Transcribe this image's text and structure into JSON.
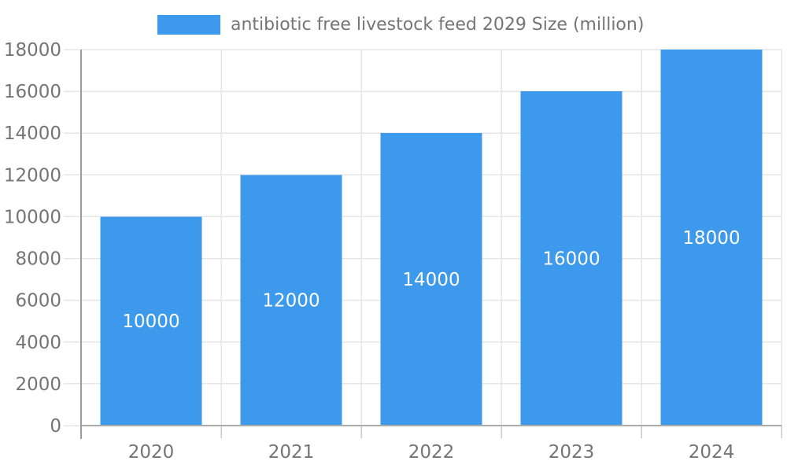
{
  "chart_data": {
    "type": "bar",
    "categories": [
      "2020",
      "2021",
      "2022",
      "2023",
      "2024"
    ],
    "values": [
      10000,
      12000,
      14000,
      16000,
      18000
    ],
    "series_name": "antibiotic free livestock feed 2029 Size (million)",
    "title": "",
    "xlabel": "",
    "ylabel": "",
    "ylim": [
      0,
      18000
    ],
    "ytick_step": 2000,
    "ytick_labels": [
      "0",
      "2000",
      "4000",
      "6000",
      "8000",
      "10000",
      "12000",
      "14000",
      "16000",
      "18000"
    ],
    "bar_value_labels": [
      "10000",
      "12000",
      "14000",
      "16000",
      "18000"
    ],
    "grid": true,
    "legend_position": "top",
    "colors": {
      "bar": "#3C99EC",
      "bar_label": "#FFFFFF",
      "axis_text": "#757575",
      "legend_text": "#757575",
      "grid_line": "#E6E6E6",
      "axis_line": "#9C9C9C",
      "baseline": "#ABABAB",
      "minor_tick": "#C9C9C9",
      "background": "#FFFFFF"
    }
  }
}
